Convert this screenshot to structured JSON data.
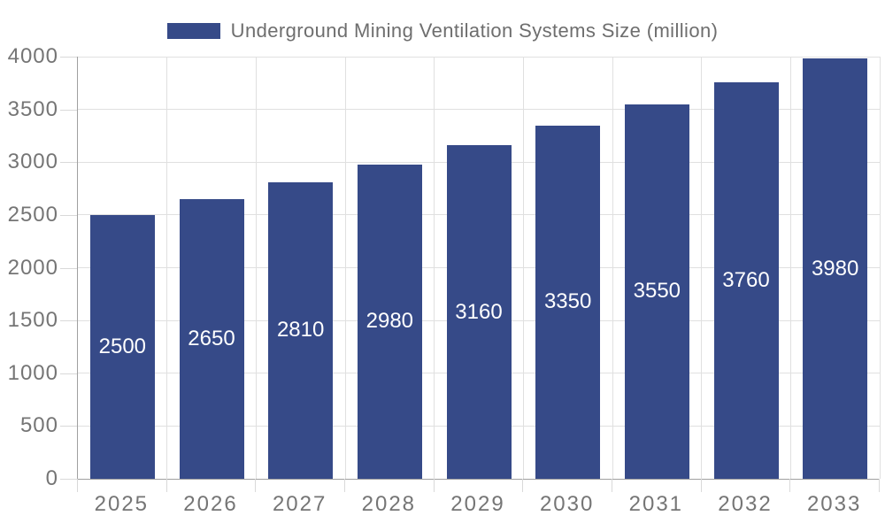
{
  "chart_data": {
    "type": "bar",
    "title": "Underground Mining Ventilation Systems Size (million)",
    "legend_label": "Underground Mining Ventilation Systems Size (million)",
    "categories": [
      "2025",
      "2026",
      "2027",
      "2028",
      "2029",
      "2030",
      "2031",
      "2032",
      "2033"
    ],
    "values": [
      2500,
      2650,
      2810,
      2980,
      3160,
      3350,
      3550,
      3760,
      3980
    ],
    "value_labels": [
      "2500",
      "2650",
      "2810",
      "2980",
      "3160",
      "3350",
      "3550",
      "3760",
      "3980"
    ],
    "xlabel": "",
    "ylabel": "",
    "ylim": [
      0,
      4000
    ],
    "yticks": [
      0,
      500,
      1000,
      1500,
      2000,
      2500,
      3000,
      3500,
      4000
    ],
    "grid": true,
    "legend_position": "top",
    "colors": {
      "bar": "#364a88",
      "bar_label_text": "#ffffff",
      "axis_text": "#757575",
      "legend_text": "#6e6e6e",
      "grid_line": "#e0e0e0",
      "axis_line": "#a0a0a0",
      "background": "#ffffff"
    }
  }
}
